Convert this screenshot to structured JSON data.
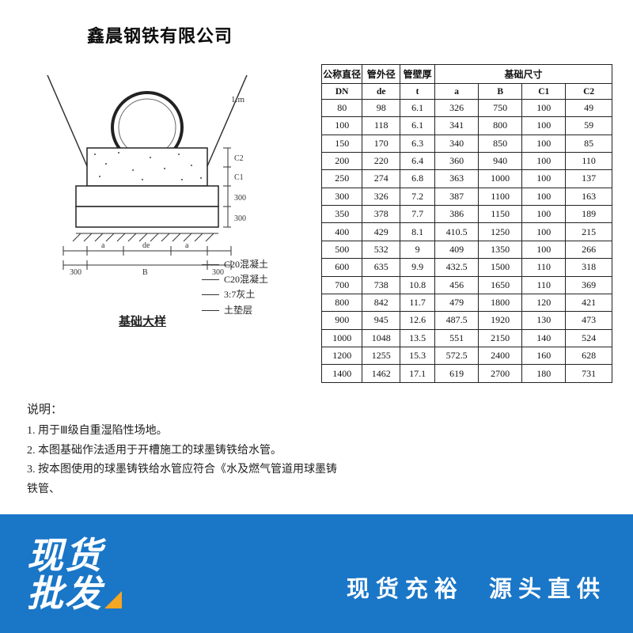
{
  "company": "鑫晨钢铁有限公司",
  "diagram": {
    "title": "基础大样",
    "dims": {
      "a": "a",
      "de": "de",
      "B": "B",
      "s300l": "300",
      "s300r": "300",
      "h300a": "300",
      "h300b": "300",
      "C1": "C1",
      "C2": "C2",
      "slope": "1:m"
    },
    "legend": [
      "C20混凝土",
      "C20混凝土",
      "3:7灰土",
      "土垫层"
    ]
  },
  "notes": {
    "title": "说明：",
    "items": [
      "1. 用于Ⅲ级自重湿陷性场地。",
      "2. 本图基础作法适用于开槽施工的球墨铸铁给水管。",
      "3. 按本图使用的球墨铸铁给水管应符合《水及燃气管道用球墨铸铁管、"
    ]
  },
  "table": {
    "group_header": "基础尺寸",
    "headers_top": [
      "公称直径",
      "管外径",
      "管壁厚"
    ],
    "headers_sub": [
      "DN",
      "de",
      "t",
      "a",
      "B",
      "C1",
      "C2"
    ],
    "rows": [
      [
        "80",
        "98",
        "6.1",
        "326",
        "750",
        "100",
        "49"
      ],
      [
        "100",
        "118",
        "6.1",
        "341",
        "800",
        "100",
        "59"
      ],
      [
        "150",
        "170",
        "6.3",
        "340",
        "850",
        "100",
        "85"
      ],
      [
        "200",
        "220",
        "6.4",
        "360",
        "940",
        "100",
        "110"
      ],
      [
        "250",
        "274",
        "6.8",
        "363",
        "1000",
        "100",
        "137"
      ],
      [
        "300",
        "326",
        "7.2",
        "387",
        "1100",
        "100",
        "163"
      ],
      [
        "350",
        "378",
        "7.7",
        "386",
        "1150",
        "100",
        "189"
      ],
      [
        "400",
        "429",
        "8.1",
        "410.5",
        "1250",
        "100",
        "215"
      ],
      [
        "500",
        "532",
        "9",
        "409",
        "1350",
        "100",
        "266"
      ],
      [
        "600",
        "635",
        "9.9",
        "432.5",
        "1500",
        "110",
        "318"
      ],
      [
        "700",
        "738",
        "10.8",
        "456",
        "1650",
        "110",
        "369"
      ],
      [
        "800",
        "842",
        "11.7",
        "479",
        "1800",
        "120",
        "421"
      ],
      [
        "900",
        "945",
        "12.6",
        "487.5",
        "1920",
        "130",
        "473"
      ],
      [
        "1000",
        "1048",
        "13.5",
        "551",
        "2150",
        "140",
        "524"
      ],
      [
        "1200",
        "1255",
        "15.3",
        "572.5",
        "2400",
        "160",
        "628"
      ],
      [
        "1400",
        "1462",
        "17.1",
        "619",
        "2700",
        "180",
        "731"
      ]
    ],
    "col_widths_pct": [
      14,
      13,
      12,
      15,
      15,
      15,
      16
    ]
  },
  "footer": {
    "badge_line1": "现货",
    "badge_line2": "批发",
    "tagline_a": "现货充裕",
    "tagline_b": "源头直供"
  },
  "colors": {
    "footer_bg": "#1a76c7",
    "accent": "#f5a623",
    "ink": "#222222"
  }
}
